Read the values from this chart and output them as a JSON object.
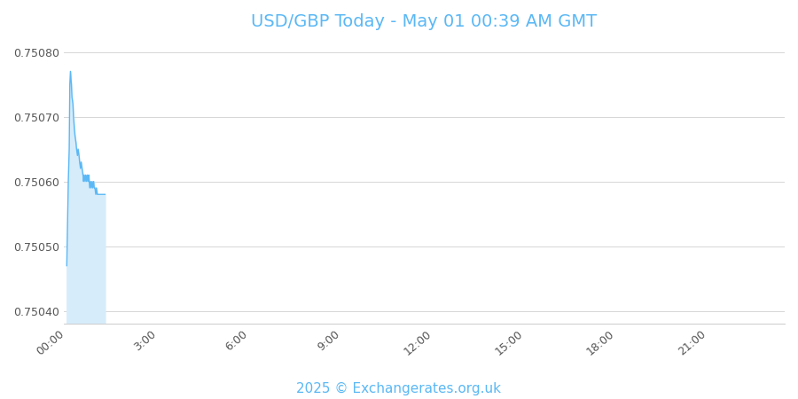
{
  "title": "USD/GBP Today - May 01 00:39 AM GMT",
  "title_color": "#5bb8f5",
  "title_fontsize": 14,
  "footer": "2025 © Exchangerates.org.uk",
  "footer_color": "#5bb8f5",
  "footer_fontsize": 11,
  "line_color": "#5bb8f5",
  "fill_color": "#d6ecfa",
  "background_color": "#ffffff",
  "grid_color": "#cccccc",
  "ylim": [
    0.75038,
    0.75082
  ],
  "yticks": [
    0.7504,
    0.7505,
    0.7506,
    0.7507,
    0.7508
  ],
  "xtick_labels": [
    "00:00",
    "3:00",
    "6:00",
    "9:00",
    "12:00",
    "15:00",
    "18:00",
    "21:00"
  ],
  "xtick_positions": [
    0,
    3,
    6,
    9,
    12,
    15,
    18,
    21
  ],
  "xlim": [
    -0.1,
    23.5
  ],
  "x_data": [
    0.0,
    0.05,
    0.08,
    0.1,
    0.12,
    0.15,
    0.17,
    0.2,
    0.22,
    0.25,
    0.27,
    0.3,
    0.32,
    0.35,
    0.37,
    0.4,
    0.42,
    0.45,
    0.47,
    0.5,
    0.53,
    0.55,
    0.57,
    0.6,
    0.62,
    0.65,
    0.67,
    0.7,
    0.72,
    0.75,
    0.78,
    0.8,
    0.83,
    0.85,
    0.88,
    0.9,
    0.92,
    0.95,
    0.97,
    1.0,
    1.05,
    1.1,
    1.15,
    1.2,
    1.25
  ],
  "y_data": [
    0.75047,
    0.7506,
    0.75065,
    0.75075,
    0.75077,
    0.75075,
    0.75073,
    0.75072,
    0.7507,
    0.75068,
    0.75067,
    0.75066,
    0.75065,
    0.75064,
    0.75065,
    0.75064,
    0.75063,
    0.75062,
    0.75063,
    0.75062,
    0.75061,
    0.7506,
    0.75061,
    0.7506,
    0.75061,
    0.7506,
    0.75061,
    0.7506,
    0.75061,
    0.75059,
    0.7506,
    0.75059,
    0.7506,
    0.75059,
    0.7506,
    0.75059,
    0.75059,
    0.75058,
    0.75059,
    0.75058,
    0.75058,
    0.75058,
    0.75058,
    0.75058,
    0.75058
  ]
}
